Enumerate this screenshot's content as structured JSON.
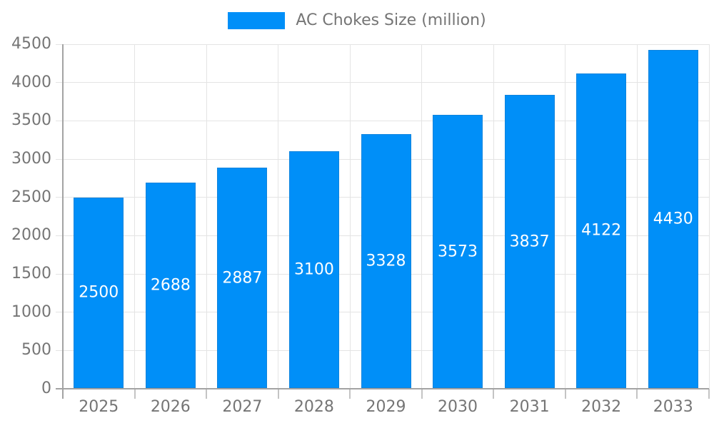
{
  "legend": {
    "items": [
      {
        "label": "AC Chokes Size (million)"
      }
    ]
  },
  "chart_data": {
    "type": "bar",
    "title": "",
    "categories": [
      "2025",
      "2026",
      "2027",
      "2028",
      "2029",
      "2030",
      "2031",
      "2032",
      "2033"
    ],
    "series": [
      {
        "name": "AC Chokes Size (million)",
        "values": [
          2500,
          2688,
          2887,
          3100,
          3328,
          3573,
          3837,
          4122,
          4430
        ]
      }
    ],
    "data_labels": {
      "visible": true,
      "position": "center",
      "color": "#FFFFFF"
    },
    "xlabel": "",
    "ylabel": "",
    "ylim": [
      0,
      4500
    ],
    "y_tick_step": 500,
    "y_ticks": [
      0,
      500,
      1000,
      1500,
      2000,
      2500,
      3000,
      3500,
      4000,
      4500
    ],
    "grid": true,
    "legend_position": "top"
  },
  "colors": {
    "bar_fill": "#008FF8",
    "bar_stroke": "#0D84DD",
    "gridline": "#E4E4E4",
    "axis_line": "#A3A3A3",
    "tick_mark": "#C4C4C4",
    "tick_text": "#757575",
    "value_label_text": "#FFFFFF",
    "background": "#FFFFFF"
  }
}
